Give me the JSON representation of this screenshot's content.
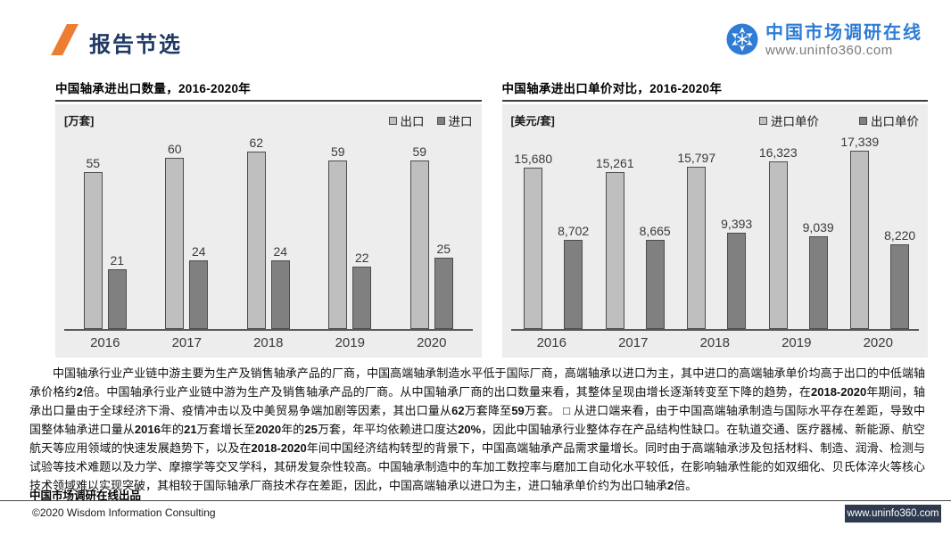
{
  "colors": {
    "accent_orange": "#ED7D31",
    "heading_navy": "#1F3864",
    "logo_blue": "#2E7CD6",
    "panel_bg": "#EDEDED",
    "bar_light": "#BFBFBF",
    "bar_dark": "#808080",
    "footer_bar_bg": "#2E3B4F"
  },
  "header": {
    "title": "报告节选"
  },
  "logo": {
    "name": "中国市场调研在线",
    "url": "www.uninfo360.com",
    "icon": "snowflake-compass-icon"
  },
  "chart_data": [
    {
      "type": "bar",
      "title": "中国轴承进出口数量，2016-2020年",
      "unit_label": "[万套]",
      "categories": [
        "2016",
        "2017",
        "2018",
        "2019",
        "2020"
      ],
      "series": [
        {
          "name": "出口",
          "values": [
            55,
            60,
            62,
            59,
            59
          ],
          "color": "#BFBFBF"
        },
        {
          "name": "进口",
          "values": [
            21,
            24,
            24,
            22,
            25
          ],
          "color": "#808080"
        }
      ],
      "ylim": [
        0,
        68
      ],
      "grid": false,
      "legend_position": "top-right",
      "value_labels": true
    },
    {
      "type": "bar",
      "title": "中国轴承进出口单价对比，2016-2020年",
      "unit_label": "[美元/套]",
      "categories": [
        "2016",
        "2017",
        "2018",
        "2019",
        "2020"
      ],
      "series": [
        {
          "name": "进口单价",
          "values": [
            15680,
            15261,
            15797,
            16323,
            17339
          ],
          "labels": [
            "15,680",
            "15,261",
            "15,797",
            "16,323",
            "17,339"
          ],
          "color": "#BFBFBF"
        },
        {
          "name": "出口单价",
          "values": [
            8702,
            8665,
            9393,
            9039,
            8220
          ],
          "labels": [
            "8,702",
            "8,665",
            "9,393",
            "9,039",
            "8,220"
          ],
          "color": "#808080"
        }
      ],
      "ylim": [
        0,
        18900
      ],
      "grid": false,
      "legend_position": "top-right",
      "value_labels": true
    }
  ],
  "paragraph": {
    "segments": [
      {
        "text": "中国轴承行业产业链中游主要为生产及销售轴承产品的厂商，中国高端轴承制造水平低于国际厂商，高端轴承以进口为主，其中进口的高端轴承单价均高于出口的中低端轴承价格约",
        "bold": false
      },
      {
        "text": "2",
        "bold": true
      },
      {
        "text": "倍。中国轴承行业产业链中游为生产及销售轴承产品的厂商。从中国轴承厂商的出口数量来看，其整体呈现由增长逐渐转变至下降的趋势，在",
        "bold": false
      },
      {
        "text": "2018-2020",
        "bold": true
      },
      {
        "text": "年期间，轴承出口量由于全球经济下滑、疫情冲击以及中美贸易争端加剧等因素，其出口量从",
        "bold": false
      },
      {
        "text": "62",
        "bold": true
      },
      {
        "text": "万套降至",
        "bold": false
      },
      {
        "text": "59",
        "bold": true
      },
      {
        "text": "万套。 □ 从进口端来看，由于中国高端轴承制造与国际水平存在差距，导致中国整体轴承进口量从",
        "bold": false
      },
      {
        "text": "2016",
        "bold": true
      },
      {
        "text": "年的",
        "bold": false
      },
      {
        "text": "21",
        "bold": true
      },
      {
        "text": "万套增长至",
        "bold": false
      },
      {
        "text": "2020",
        "bold": true
      },
      {
        "text": "年的",
        "bold": false
      },
      {
        "text": "25",
        "bold": true
      },
      {
        "text": "万套，年平均依赖进口度达",
        "bold": false
      },
      {
        "text": "20%",
        "bold": true
      },
      {
        "text": "，因此中国轴承行业整体存在产品结构性缺口。在轨道交通、医疗器械、新能源、航空航天等应用领域的快速发展趋势下，以及在",
        "bold": false
      },
      {
        "text": "2018-2020",
        "bold": true
      },
      {
        "text": "年间中国经济结构转型的背景下，中国高端轴承产品需求量增长。同时由于高端轴承涉及包括材料、制造、润滑、检测与试验等技术难题以及力学、摩擦学等交叉学科，其研发复杂性较高。中国轴承制造中的车加工数控率与磨加工自动化水平较低，在影响轴承性能的如双细化、贝氏体淬火等核心技术领域难以实现突破，其相较于国际轴承厂商技术存在差距，因此，中国高端轴承以进口为主，进口轴承单价约为出口轴承",
        "bold": false
      },
      {
        "text": "2",
        "bold": true
      },
      {
        "text": "倍。",
        "bold": false
      }
    ]
  },
  "footer": {
    "produced_by": "中国市场调研在线出品",
    "copyright": "©2020 Wisdom Information Consulting",
    "site": "www.uninfo360.com"
  }
}
